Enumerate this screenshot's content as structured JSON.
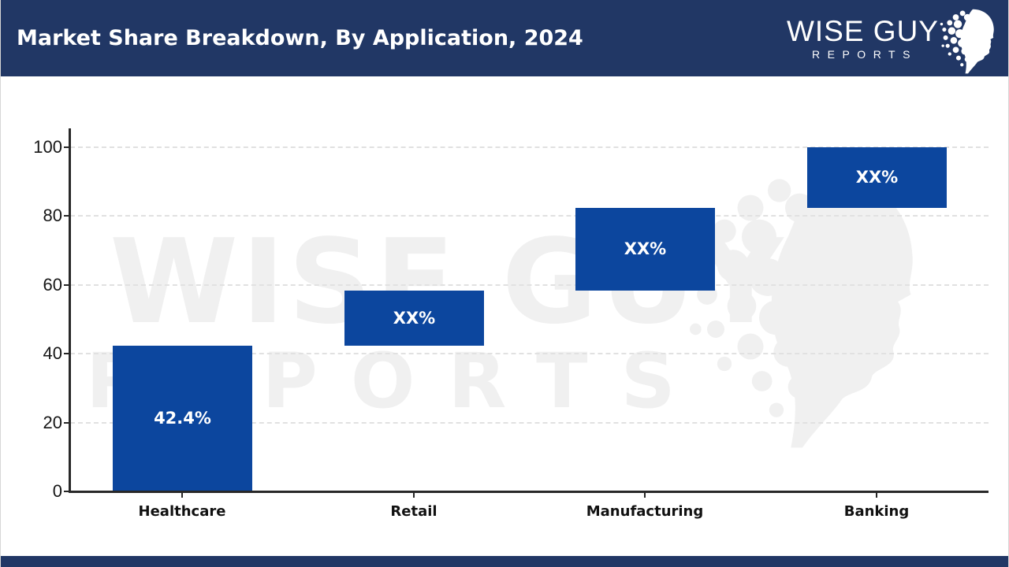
{
  "header": {
    "title": "Market Share Breakdown, By Application, 2024",
    "bg_color": "#213765",
    "logo": {
      "line1": "WISE GUY",
      "line2": "REPORTS"
    }
  },
  "watermark": {
    "line1": "WISE GUY",
    "line2": "REPORTS"
  },
  "chart_data": {
    "type": "bar",
    "subtype": "waterfall",
    "title": "Market Share Breakdown, By Application, 2024",
    "categories": [
      "Healthcare",
      "Retail",
      "Manufacturing",
      "Banking"
    ],
    "segments": [
      {
        "category": "Healthcare",
        "start": 0,
        "end": 42.4,
        "label": "42.4%"
      },
      {
        "category": "Retail",
        "start": 42.4,
        "end": 58.4,
        "label": "XX%"
      },
      {
        "category": "Manufacturing",
        "start": 58.4,
        "end": 82.4,
        "label": "XX%"
      },
      {
        "category": "Banking",
        "start": 82.4,
        "end": 100,
        "label": "XX%"
      }
    ],
    "values_increment": [
      42.4,
      16.0,
      24.0,
      17.6
    ],
    "ylim": [
      0,
      100
    ],
    "yticks": [
      0,
      20,
      40,
      60,
      80,
      100
    ],
    "grid": "horizontal-dashed",
    "legend": "none",
    "bar_color": "#0c469e",
    "bar_label_color": "#ffffff",
    "axis_color": "#282828",
    "gridline_color": "#e1e1e1"
  }
}
